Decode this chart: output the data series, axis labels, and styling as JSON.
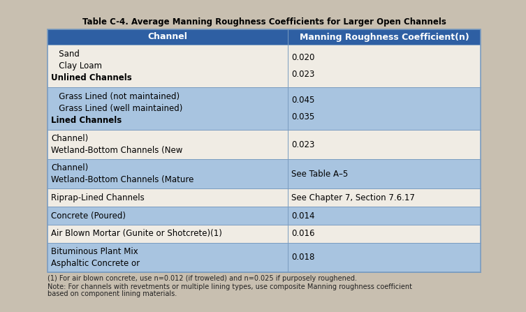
{
  "title": "Table C-4. Average Manning Roughness Coefficients for Larger Open Channels",
  "col1_header": "Channel",
  "col2_header": "Manning Roughness Coefficient(n)",
  "rows": [
    {
      "channel_lines": [
        "Unlined Channels",
        "   Clay Loam",
        "   Sand"
      ],
      "coeff_lines": [
        "",
        "0.023",
        "0.020"
      ],
      "bg": "#f0ece4",
      "bold_idx": [
        0
      ]
    },
    {
      "channel_lines": [
        "Lined Channels",
        "   Grass Lined (well maintained)",
        "   Grass Lined (not maintained)"
      ],
      "coeff_lines": [
        "",
        "0.035",
        "0.045"
      ],
      "bg": "#a8c4e0",
      "bold_idx": [
        0
      ]
    },
    {
      "channel_lines": [
        "Wetland-Bottom Channels (New",
        "Channel)"
      ],
      "coeff_lines": [
        "0.023",
        ""
      ],
      "bg": "#f0ece4",
      "bold_idx": []
    },
    {
      "channel_lines": [
        "Wetland-Bottom Channels (Mature",
        "Channel)"
      ],
      "coeff_lines": [
        "See Table A–5",
        ""
      ],
      "bg": "#a8c4e0",
      "bold_idx": []
    },
    {
      "channel_lines": [
        "Riprap-Lined Channels"
      ],
      "coeff_lines": [
        "See Chapter 7, Section 7.6.17"
      ],
      "bg": "#f0ece4",
      "bold_idx": []
    },
    {
      "channel_lines": [
        "Concrete (Poured)"
      ],
      "coeff_lines": [
        "0.014"
      ],
      "bg": "#a8c4e0",
      "bold_idx": []
    },
    {
      "channel_lines": [
        "Air Blown Mortar (Gunite or Shotcrete)(1)"
      ],
      "coeff_lines": [
        "0.016"
      ],
      "bg": "#f0ece4",
      "bold_idx": []
    },
    {
      "channel_lines": [
        "Asphaltic Concrete or",
        "Bituminous Plant Mix"
      ],
      "coeff_lines": [
        "0.018",
        ""
      ],
      "bg": "#a8c4e0",
      "bold_idx": []
    }
  ],
  "footnote1": "(1) For air blown concrete, use n=0.012 (if troweled) and n=0.025 if purposely roughened.",
  "footnote2": "Note: For channels with revetments or multiple lining types, use composite Manning roughness coefficient",
  "footnote3": "based on component lining materials.",
  "header_bg": "#2e5fa3",
  "header_text_color": "#ffffff",
  "border_color": "#7a9cc0",
  "bg_color": "#c8bfb0",
  "title_fontsize": 8.5,
  "header_fontsize": 9,
  "cell_fontsize": 8.5,
  "footnote_fontsize": 7,
  "col_split": 0.555
}
